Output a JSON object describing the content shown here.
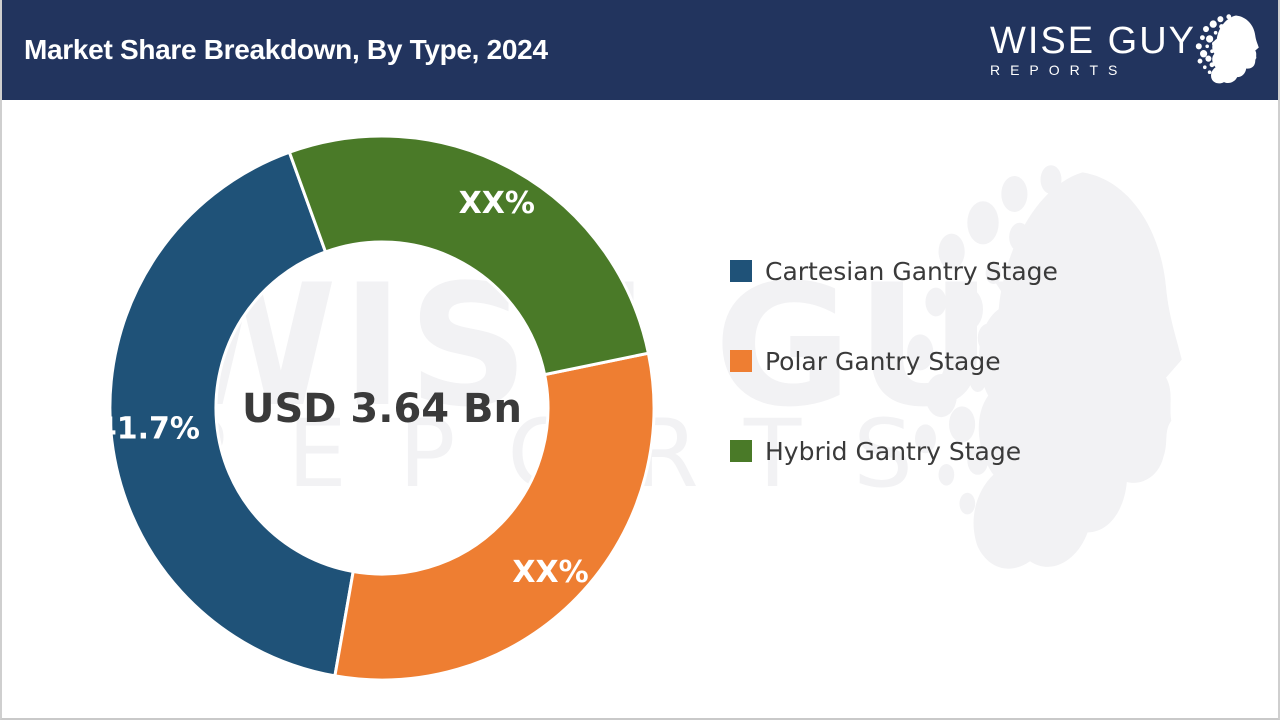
{
  "header": {
    "title": "Market Share Breakdown, By Type, 2024",
    "logo": {
      "brand": "WISE GUY",
      "sub": "REPORTS"
    }
  },
  "watermark": {
    "line1": "WISE GUY",
    "line2": "REPORTS"
  },
  "chart_data": {
    "type": "pie",
    "variant": "donut",
    "title": "Market Share Breakdown, By Type, 2024",
    "center_label": "USD 3.64 Bn",
    "categories": [
      "Cartesian Gantry Stage",
      "Polar Gantry Stage",
      "Hybrid Gantry Stage"
    ],
    "series": [
      {
        "name": "Cartesian Gantry Stage",
        "value": 41.7,
        "display_label": "41.7%",
        "color": "#1F5278"
      },
      {
        "name": "Polar Gantry Stage",
        "value": 31.0,
        "display_label": "XX%",
        "color": "#EE7E32"
      },
      {
        "name": "Hybrid Gantry Stage",
        "value": 27.3,
        "display_label": "XX%",
        "color": "#4A7A28"
      }
    ],
    "start_angle_deg": -19.9,
    "direction": "counterclockwise",
    "inner_radius_ratio": 0.61,
    "slice_label_color": "#FFFFFF",
    "center_label_color": "#3A3A3A",
    "legend_position": "right",
    "note": "Polar and Hybrid shares are masked as XX% in the source image; values estimated from arc angles"
  },
  "colors": {
    "header_bg": "#22345E",
    "page_bg": "#FFFFFF",
    "watermark": "#F2F2F4",
    "border": "#C9C9C9",
    "legend_text": "#3A3A3A",
    "gap_stroke": "#FFFFFF"
  }
}
